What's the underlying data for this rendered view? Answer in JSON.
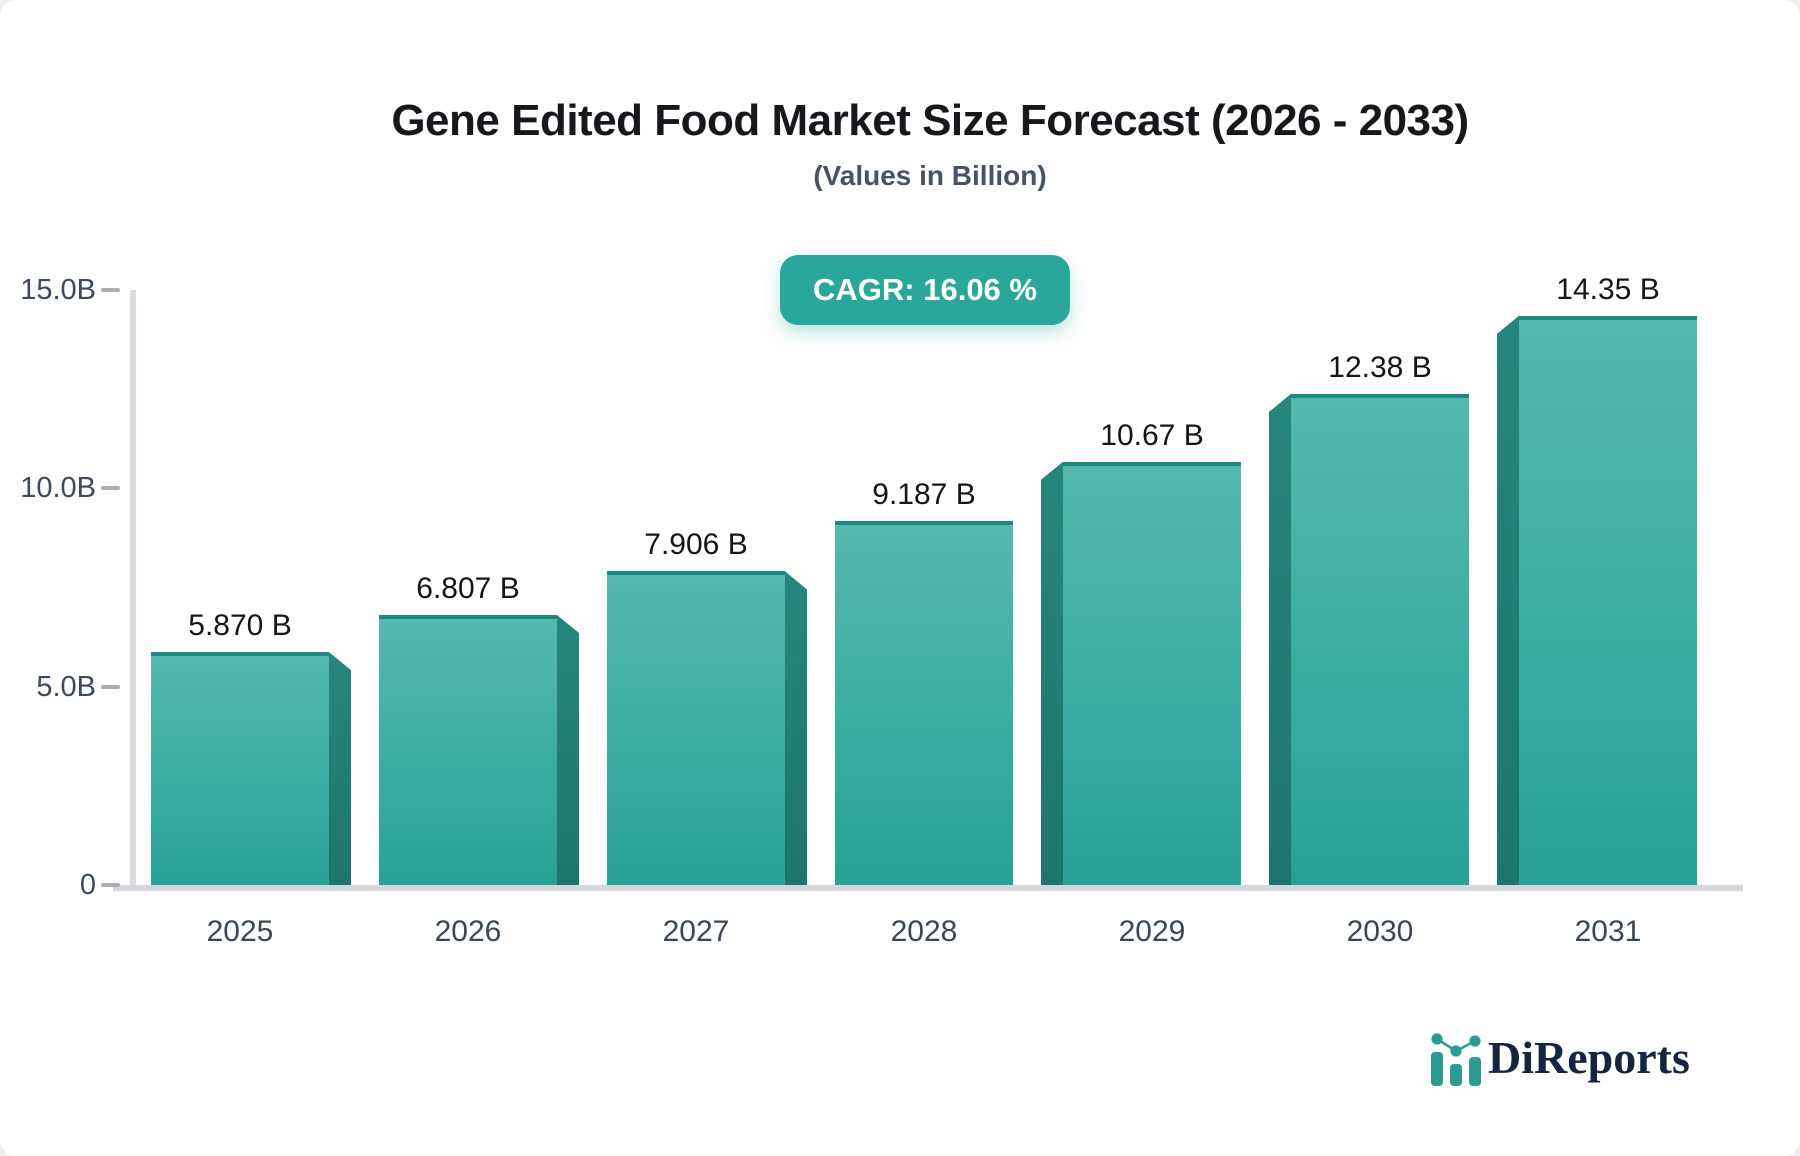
{
  "header": {
    "title": "Gene Edited Food Market Size Forecast (2026 - 2033)",
    "subtitle": "(Values in Billion)",
    "cagr_badge_label": "CAGR: 16.06 %"
  },
  "chart_data": {
    "type": "bar",
    "categories": [
      "2025",
      "2026",
      "2027",
      "2028",
      "2029",
      "2030",
      "2031"
    ],
    "values": [
      5.87,
      6.807,
      7.906,
      9.187,
      10.67,
      12.38,
      14.35
    ],
    "value_labels": [
      "5.870 B",
      "6.807 B",
      "7.906 B",
      "9.187 B",
      "10.67 B",
      "12.38 B",
      "14.35 B"
    ],
    "title": "Gene Edited Food Market Size Forecast (2026 - 2033)",
    "subtitle": "(Values in Billion)",
    "xlabel": "",
    "ylabel": "",
    "ylim": [
      0,
      15
    ],
    "yticks": [
      {
        "value": 0,
        "label": "0"
      },
      {
        "value": 5,
        "label": "5.0B"
      },
      {
        "value": 10,
        "label": "10.0B"
      },
      {
        "value": 15,
        "label": "15.0B"
      }
    ],
    "grid": false,
    "legend": "none",
    "style": "3d-extruded-bars",
    "annotations": [
      "CAGR: 16.06 %"
    ]
  },
  "colors": {
    "bar_face_top": "#54b8ae",
    "bar_face_bottom": "#28a195",
    "bar_side": "#1f7d74",
    "badge_background": "#2aa79a",
    "badge_text": "#ffffff",
    "axis_line": "#d5d8dd",
    "tick_dash": "#a8adb6",
    "title_text": "#16181c",
    "subtitle_text": "#4a5362",
    "label_text": "#131619",
    "brand_navy": "#142441",
    "brand_teal": "#2c9c93"
  },
  "footer": {
    "logo_text": "DiReports",
    "logo_icon": "mini-bar-line-chart-icon"
  }
}
